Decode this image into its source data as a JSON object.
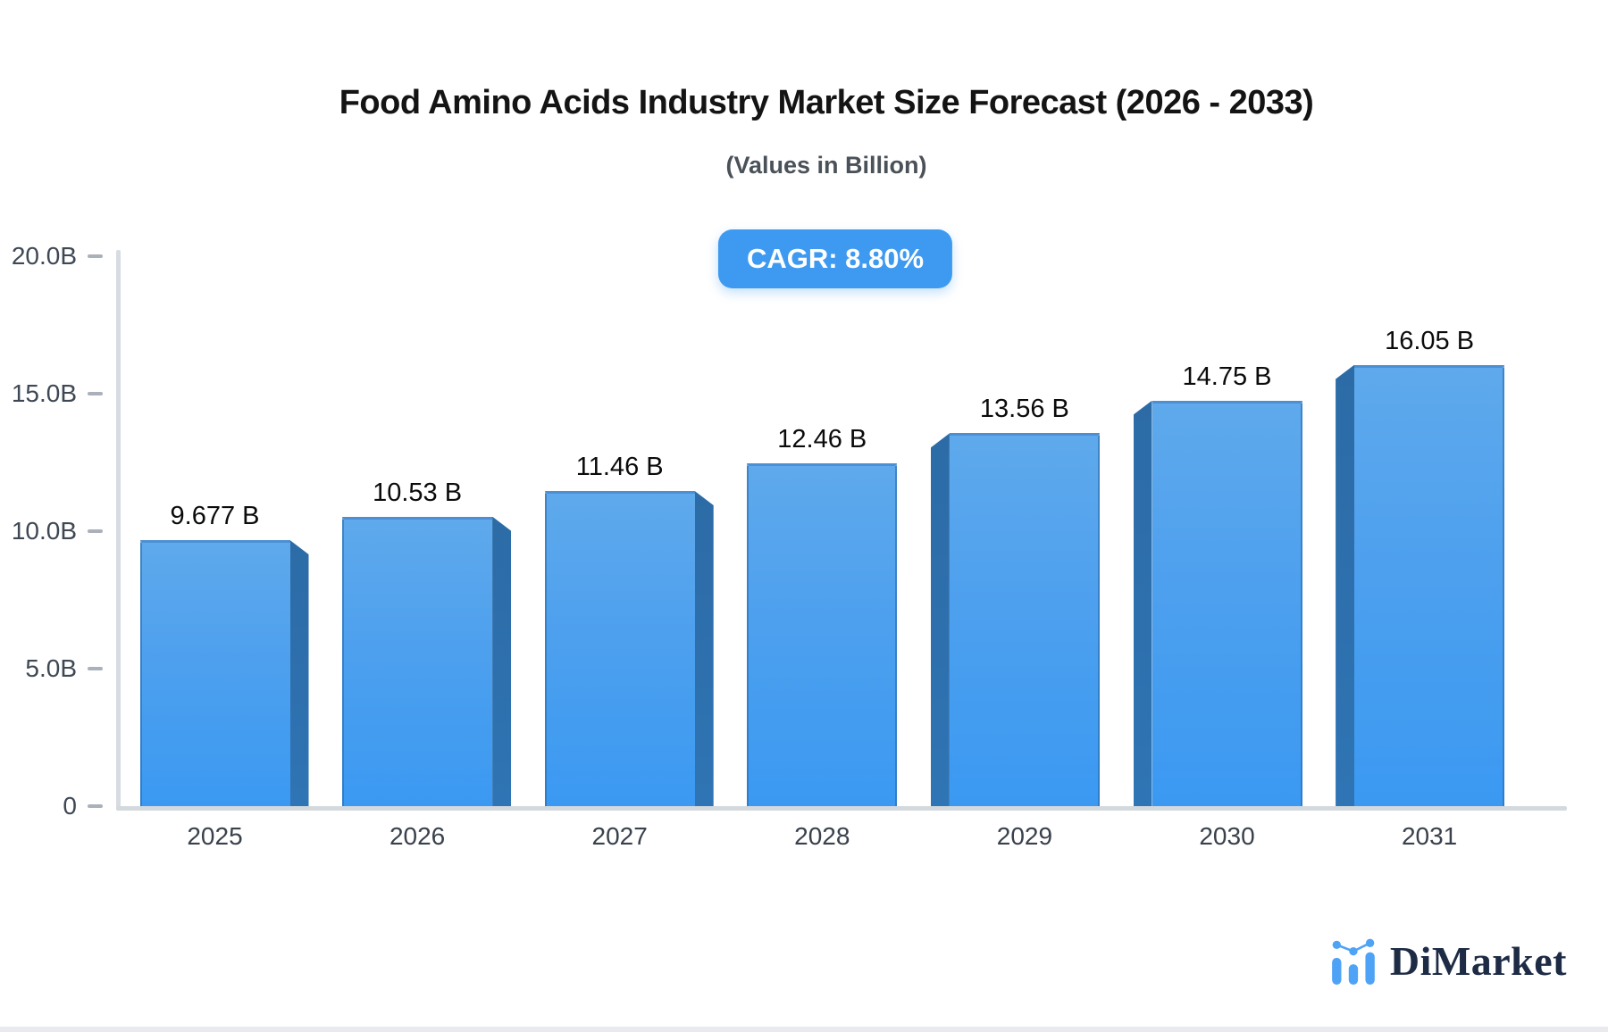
{
  "title": "Food Amino Acids Industry Market Size Forecast (2026 - 2033)",
  "subtitle": "(Values in Billion)",
  "badge": {
    "label": "CAGR: 8.80%",
    "color": "#3E9AF1"
  },
  "chart_data": {
    "type": "bar",
    "categories": [
      "2025",
      "2026",
      "2027",
      "2028",
      "2029",
      "2030",
      "2031"
    ],
    "values": [
      9.677,
      10.53,
      11.46,
      12.46,
      13.56,
      14.75,
      16.05
    ],
    "value_labels": [
      "9.677 B",
      "10.53 B",
      "11.46 B",
      "12.46 B",
      "13.56 B",
      "14.75 B",
      "16.05 B"
    ],
    "title": "Food Amino Acids Industry Market Size Forecast (2026 - 2033)",
    "subtitle": "(Values in Billion)",
    "xlabel": "",
    "ylabel": "",
    "ylim": [
      0,
      20
    ],
    "yticks": [
      {
        "value": 20,
        "label": "20.0B"
      },
      {
        "value": 15,
        "label": "15.0B"
      },
      {
        "value": 10,
        "label": "10.0B"
      },
      {
        "value": 5,
        "label": "5.0B"
      },
      {
        "value": 0,
        "label": "0"
      }
    ],
    "grid": false,
    "legend": false,
    "style": "3d-perspective-bars",
    "bar_color_top": "#5fa9ec",
    "bar_color_bottom": "#3b99f2",
    "bar_side_color": "#2e72b2"
  },
  "logo": {
    "text": "DiMarket",
    "icon": "mini-bar-chart-icon",
    "icon_color": "#4FA3F7",
    "text_color": "#1d2b45"
  }
}
